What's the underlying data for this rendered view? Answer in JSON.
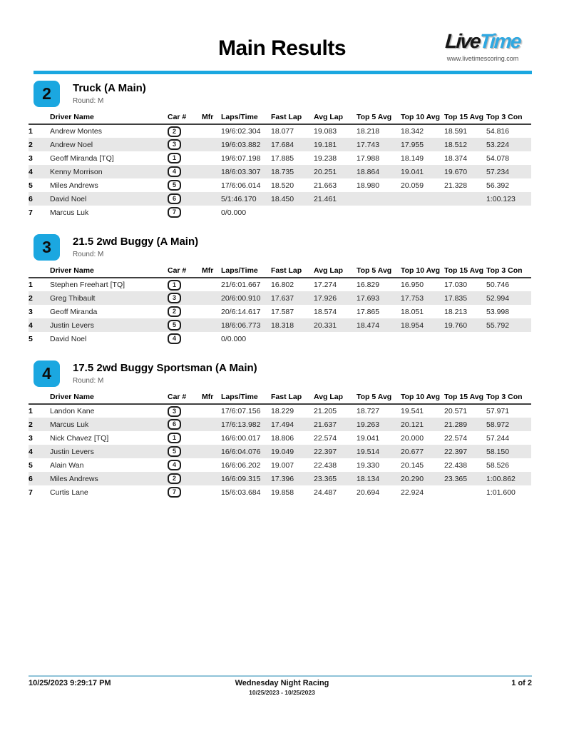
{
  "page": {
    "title": "Main Results",
    "logo": {
      "part1": "Live",
      "part2": "Time",
      "url": "www.livetimescoring.com"
    },
    "colors": {
      "accent": "#1ba7e0",
      "stripe": "#e7e7e7",
      "footer_line": "#8fc3d8"
    },
    "footer": {
      "printed_at": "10/25/2023 9:29:17 PM",
      "event_name": "Wednesday Night Racing",
      "event_dates": "10/25/2023 - 10/25/2023",
      "page_indicator": "1 of 2"
    }
  },
  "columns": [
    "Driver Name",
    "Car #",
    "Mfr",
    "Laps/Time",
    "Fast Lap",
    "Avg Lap",
    "Top 5 Avg",
    "Top 10 Avg",
    "Top 15 Avg",
    "Top 3 Con"
  ],
  "sections": [
    {
      "number": "2",
      "title": "Truck (A Main)",
      "round": "Round: M",
      "rows": [
        {
          "pos": "1",
          "driver": "Andrew Montes",
          "car": "2",
          "mfr": "",
          "laps_time": "19/6:02.304",
          "fast_lap": "18.077",
          "avg_lap": "19.083",
          "top5_avg": "18.218",
          "top10_avg": "18.342",
          "top15_avg": "18.591",
          "top3_con": "54.816"
        },
        {
          "pos": "2",
          "driver": "Andrew Noel",
          "car": "3",
          "mfr": "",
          "laps_time": "19/6:03.882",
          "fast_lap": "17.684",
          "avg_lap": "19.181",
          "top5_avg": "17.743",
          "top10_avg": "17.955",
          "top15_avg": "18.512",
          "top3_con": "53.224"
        },
        {
          "pos": "3",
          "driver": "Geoff Miranda [TQ]",
          "car": "1",
          "mfr": "",
          "laps_time": "19/6:07.198",
          "fast_lap": "17.885",
          "avg_lap": "19.238",
          "top5_avg": "17.988",
          "top10_avg": "18.149",
          "top15_avg": "18.374",
          "top3_con": "54.078"
        },
        {
          "pos": "4",
          "driver": "Kenny Morrison",
          "car": "4",
          "mfr": "",
          "laps_time": "18/6:03.307",
          "fast_lap": "18.735",
          "avg_lap": "20.251",
          "top5_avg": "18.864",
          "top10_avg": "19.041",
          "top15_avg": "19.670",
          "top3_con": "57.234"
        },
        {
          "pos": "5",
          "driver": "Miles Andrews",
          "car": "5",
          "mfr": "",
          "laps_time": "17/6:06.014",
          "fast_lap": "18.520",
          "avg_lap": "21.663",
          "top5_avg": "18.980",
          "top10_avg": "20.059",
          "top15_avg": "21.328",
          "top3_con": "56.392"
        },
        {
          "pos": "6",
          "driver": "David Noel",
          "car": "6",
          "mfr": "",
          "laps_time": "5/1:46.170",
          "fast_lap": "18.450",
          "avg_lap": "21.461",
          "top5_avg": "",
          "top10_avg": "",
          "top15_avg": "",
          "top3_con": "1:00.123"
        },
        {
          "pos": "7",
          "driver": "Marcus Luk",
          "car": "7",
          "mfr": "",
          "laps_time": "0/0.000",
          "fast_lap": "",
          "avg_lap": "",
          "top5_avg": "",
          "top10_avg": "",
          "top15_avg": "",
          "top3_con": ""
        }
      ]
    },
    {
      "number": "3",
      "title": "21.5 2wd Buggy (A Main)",
      "round": "Round: M",
      "rows": [
        {
          "pos": "1",
          "driver": "Stephen Freehart [TQ]",
          "car": "1",
          "mfr": "",
          "laps_time": "21/6:01.667",
          "fast_lap": "16.802",
          "avg_lap": "17.274",
          "top5_avg": "16.829",
          "top10_avg": "16.950",
          "top15_avg": "17.030",
          "top3_con": "50.746"
        },
        {
          "pos": "2",
          "driver": "Greg Thibault",
          "car": "3",
          "mfr": "",
          "laps_time": "20/6:00.910",
          "fast_lap": "17.637",
          "avg_lap": "17.926",
          "top5_avg": "17.693",
          "top10_avg": "17.753",
          "top15_avg": "17.835",
          "top3_con": "52.994"
        },
        {
          "pos": "3",
          "driver": "Geoff Miranda",
          "car": "2",
          "mfr": "",
          "laps_time": "20/6:14.617",
          "fast_lap": "17.587",
          "avg_lap": "18.574",
          "top5_avg": "17.865",
          "top10_avg": "18.051",
          "top15_avg": "18.213",
          "top3_con": "53.998"
        },
        {
          "pos": "4",
          "driver": "Justin Levers",
          "car": "5",
          "mfr": "",
          "laps_time": "18/6:06.773",
          "fast_lap": "18.318",
          "avg_lap": "20.331",
          "top5_avg": "18.474",
          "top10_avg": "18.954",
          "top15_avg": "19.760",
          "top3_con": "55.792"
        },
        {
          "pos": "5",
          "driver": "David Noel",
          "car": "4",
          "mfr": "",
          "laps_time": "0/0.000",
          "fast_lap": "",
          "avg_lap": "",
          "top5_avg": "",
          "top10_avg": "",
          "top15_avg": "",
          "top3_con": ""
        }
      ]
    },
    {
      "number": "4",
      "title": "17.5 2wd Buggy Sportsman (A Main)",
      "round": "Round: M",
      "rows": [
        {
          "pos": "1",
          "driver": "Landon Kane",
          "car": "3",
          "mfr": "",
          "laps_time": "17/6:07.156",
          "fast_lap": "18.229",
          "avg_lap": "21.205",
          "top5_avg": "18.727",
          "top10_avg": "19.541",
          "top15_avg": "20.571",
          "top3_con": "57.971"
        },
        {
          "pos": "2",
          "driver": "Marcus Luk",
          "car": "6",
          "mfr": "",
          "laps_time": "17/6:13.982",
          "fast_lap": "17.494",
          "avg_lap": "21.637",
          "top5_avg": "19.263",
          "top10_avg": "20.121",
          "top15_avg": "21.289",
          "top3_con": "58.972"
        },
        {
          "pos": "3",
          "driver": "Nick Chavez [TQ]",
          "car": "1",
          "mfr": "",
          "laps_time": "16/6:00.017",
          "fast_lap": "18.806",
          "avg_lap": "22.574",
          "top5_avg": "19.041",
          "top10_avg": "20.000",
          "top15_avg": "22.574",
          "top3_con": "57.244"
        },
        {
          "pos": "4",
          "driver": "Justin Levers",
          "car": "5",
          "mfr": "",
          "laps_time": "16/6:04.076",
          "fast_lap": "19.049",
          "avg_lap": "22.397",
          "top5_avg": "19.514",
          "top10_avg": "20.677",
          "top15_avg": "22.397",
          "top3_con": "58.150"
        },
        {
          "pos": "5",
          "driver": "Alain Wan",
          "car": "4",
          "mfr": "",
          "laps_time": "16/6:06.202",
          "fast_lap": "19.007",
          "avg_lap": "22.438",
          "top5_avg": "19.330",
          "top10_avg": "20.145",
          "top15_avg": "22.438",
          "top3_con": "58.526"
        },
        {
          "pos": "6",
          "driver": "Miles Andrews",
          "car": "2",
          "mfr": "",
          "laps_time": "16/6:09.315",
          "fast_lap": "17.396",
          "avg_lap": "23.365",
          "top5_avg": "18.134",
          "top10_avg": "20.290",
          "top15_avg": "23.365",
          "top3_con": "1:00.862"
        },
        {
          "pos": "7",
          "driver": "Curtis Lane",
          "car": "7",
          "mfr": "",
          "laps_time": "15/6:03.684",
          "fast_lap": "19.858",
          "avg_lap": "24.487",
          "top5_avg": "20.694",
          "top10_avg": "22.924",
          "top15_avg": "",
          "top3_con": "1:01.600"
        }
      ]
    }
  ]
}
